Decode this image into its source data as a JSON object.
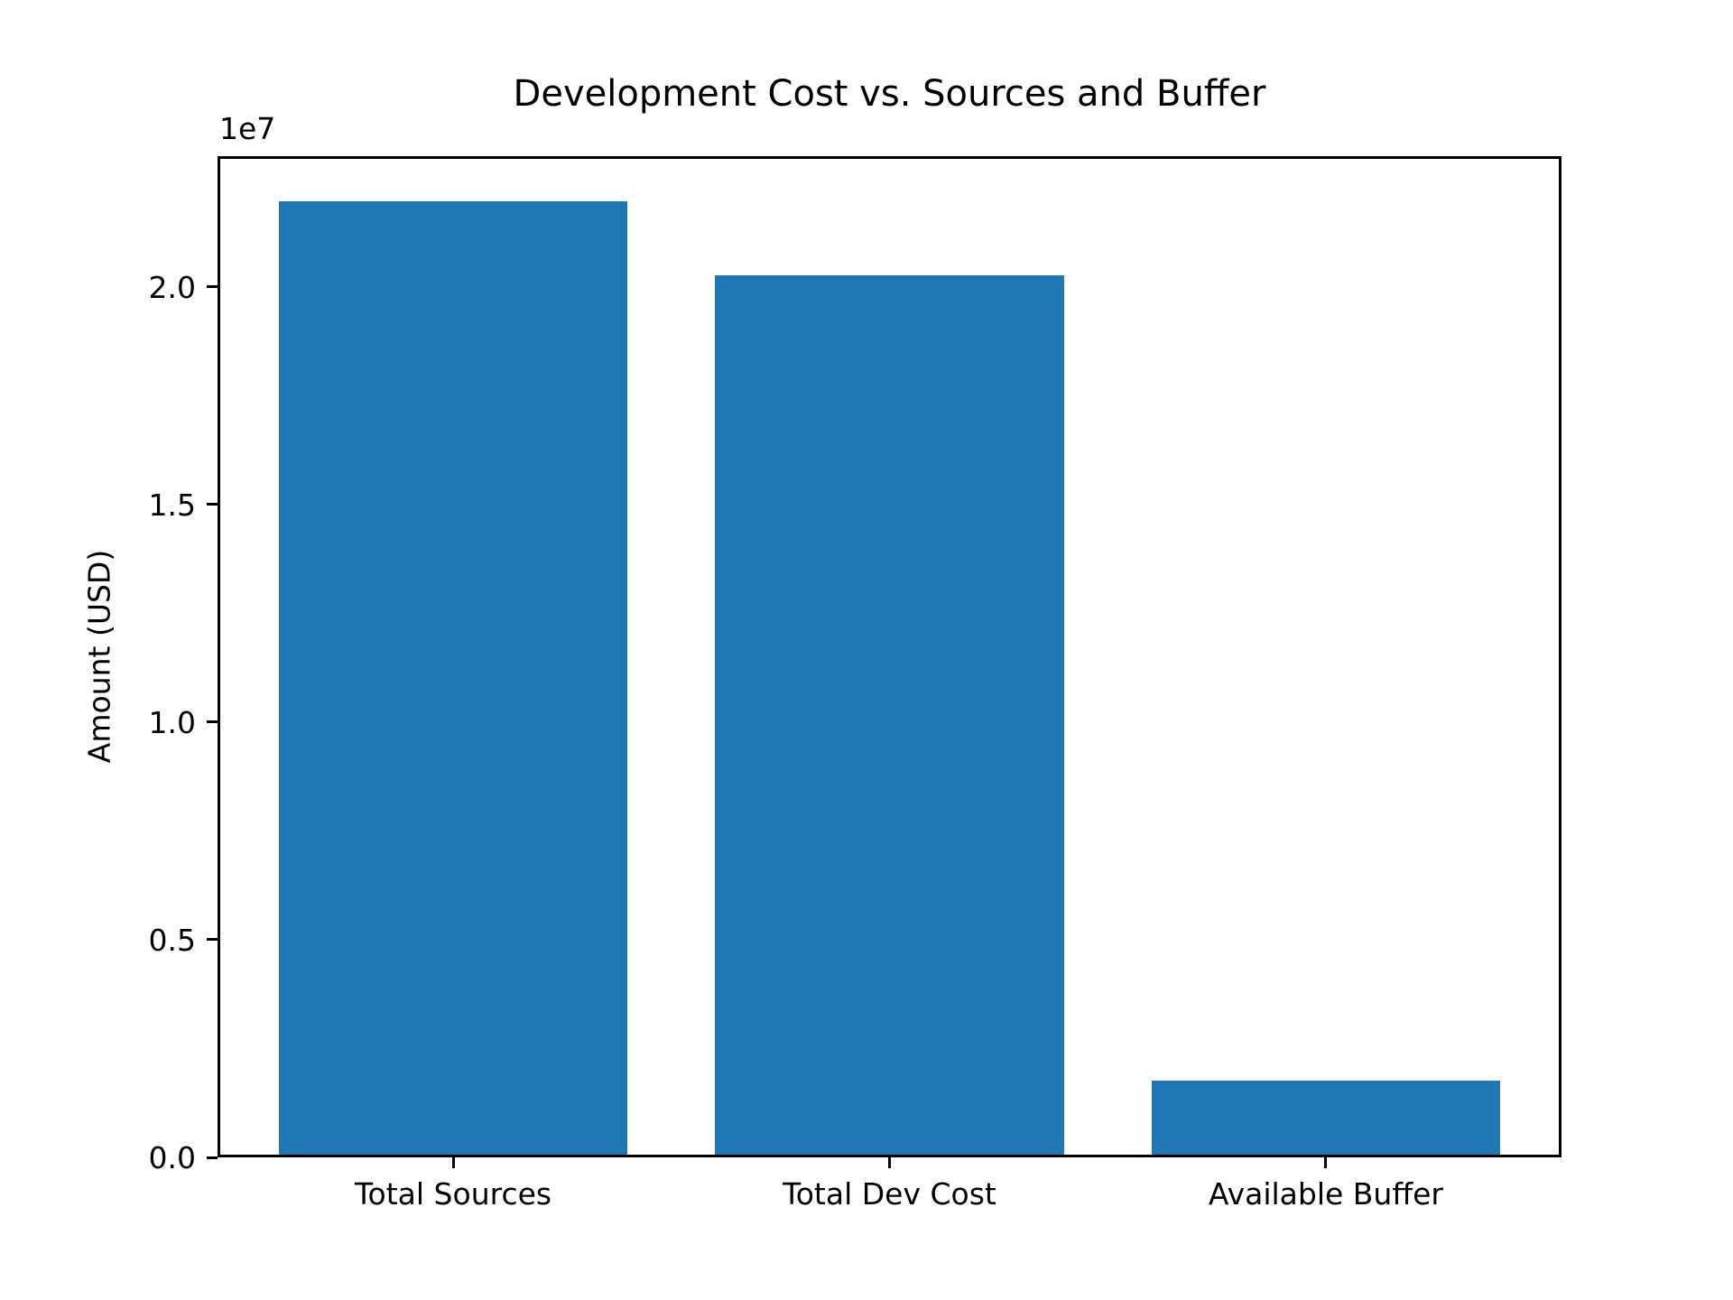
{
  "chart_data": {
    "type": "bar",
    "title": "Development Cost vs. Sources and Buffer",
    "ylabel": "Amount (USD)",
    "xlabel": "",
    "offset_label": "1e7",
    "categories": [
      "Total Sources",
      "Total Dev Cost",
      "Available Buffer"
    ],
    "values": [
      21900000,
      20200000,
      1700000
    ],
    "y_ticks": [
      0,
      5000000,
      10000000,
      15000000,
      20000000
    ],
    "y_tick_labels": [
      "0.0",
      "0.5",
      "1.0",
      "1.5",
      "2.0"
    ],
    "ylim": [
      0,
      23000000
    ],
    "xlim": [
      -0.54,
      2.54
    ],
    "bar_width": 0.8,
    "bar_color": "#1f77b4",
    "axis_color": "#000000",
    "background_color": "#ffffff",
    "grid": false,
    "legend": "none"
  }
}
